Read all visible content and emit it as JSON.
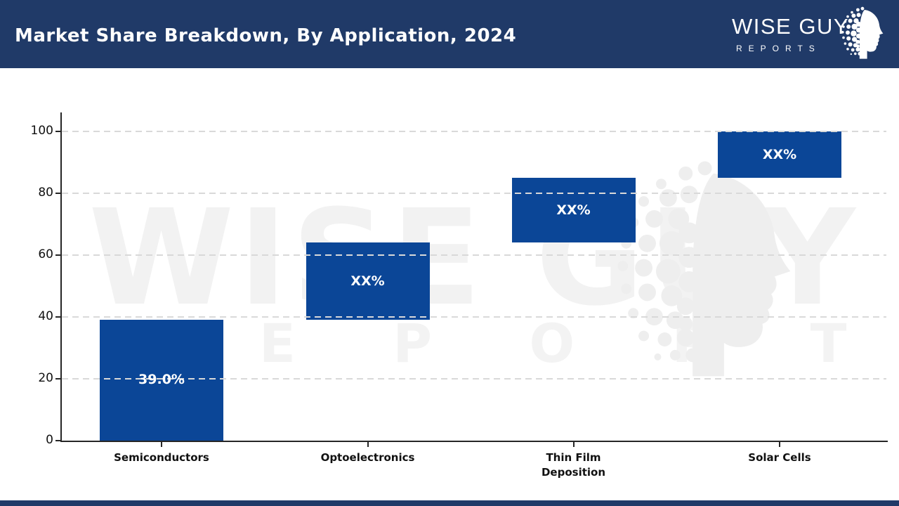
{
  "header": {
    "title": "Market Share Breakdown, By Application, 2024",
    "logo": {
      "line1": "WISE GUY",
      "line2": "REPORTS"
    }
  },
  "watermark": {
    "line1": "WISE GUY",
    "line2": "R E P O R T S"
  },
  "chart_data": {
    "type": "bar",
    "subtype": "waterfall",
    "title": "Market Share Breakdown, By Application, 2024",
    "categories": [
      "Semiconductors",
      "Optoelectronics",
      "Thin Film\nDeposition",
      "Solar Cells"
    ],
    "values": [
      39,
      25,
      21,
      15
    ],
    "starts": [
      0,
      39,
      64,
      85
    ],
    "bar_labels": [
      "39.0%",
      "XX%",
      "XX%",
      "XX%"
    ],
    "yticks": [
      0,
      20,
      40,
      60,
      80,
      100
    ],
    "ylim": [
      0,
      106
    ],
    "xlabel": "",
    "ylabel": "",
    "grid": "horizontal-dashed",
    "legend": "none",
    "colors": {
      "bar": "#0b4697",
      "header_bg": "#203a68",
      "bar_label": "#ffffff",
      "grid": "#d9d9d9",
      "axis": "#262626",
      "watermark": "#f2f2f2"
    }
  }
}
